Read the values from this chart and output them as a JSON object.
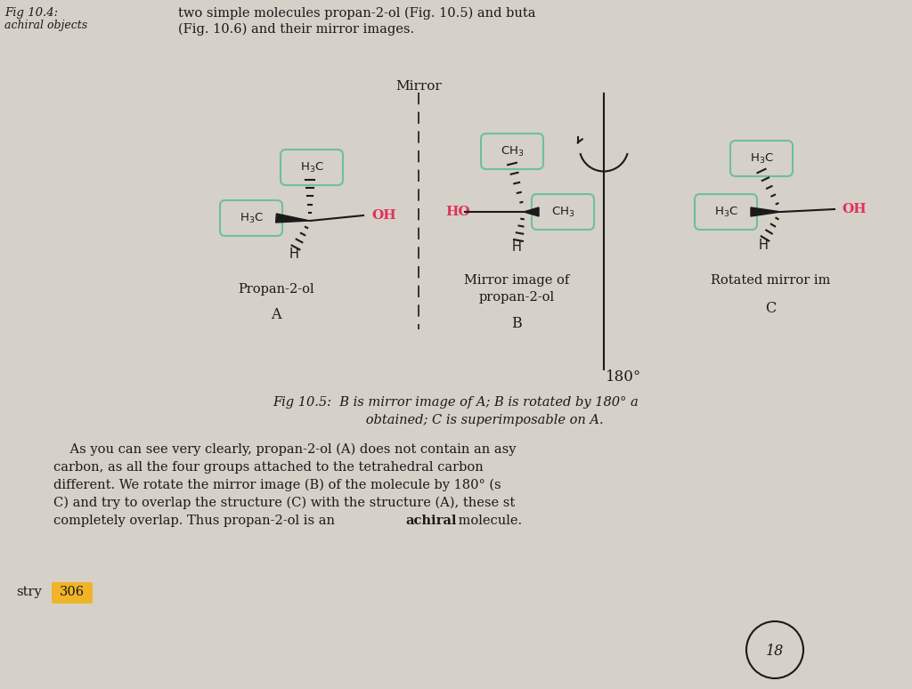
{
  "bg_color": "#d5d0c8",
  "title_fig": "Fig 10.4:",
  "title_italic": "achiral objects",
  "header_line1": "two simple molecules propan-2-ol (Fig. 10.5) and buta",
  "header_line2": "(Fig. 10.6) and their mirror images.",
  "mirror_label": "Mirror",
  "mol_A_label": "Propan-2-ol",
  "mol_A_letter": "A",
  "mol_B_label1": "Mirror image of",
  "mol_B_label2": "propan-2-ol",
  "mol_B_letter": "B",
  "mol_C_label": "Rotated mirror im",
  "mol_C_letter": "C",
  "angle_label": "180°",
  "fig105_line1": "Fig 10.5:  B is mirror image of A; B is rotated by 180° a",
  "fig105_line2": "obtained; C is superimposable on A.",
  "body_line1": "    As you can see very clearly, propan-2-ol (A) does not contain an asy",
  "body_line2": "carbon, as all the four groups attached to the tetrahedral carbon",
  "body_line3": "different. We rotate the mirror image (B) of the molecule by 180° (s",
  "body_line4": "C) and try to overlap the structure (C) with the structure (A), these st",
  "body_line5a": "completely overlap. Thus propan-2-ol is an ",
  "body_bold": "achiral",
  "body_line5b": " molecule.",
  "page_stry": "stry",
  "page_num": "306",
  "circle_num": "18",
  "red_color": "#e0325a",
  "box_color": "#6dbfa0",
  "text_dark": "#1a1a1a",
  "yellow_hl": "#f0b429"
}
